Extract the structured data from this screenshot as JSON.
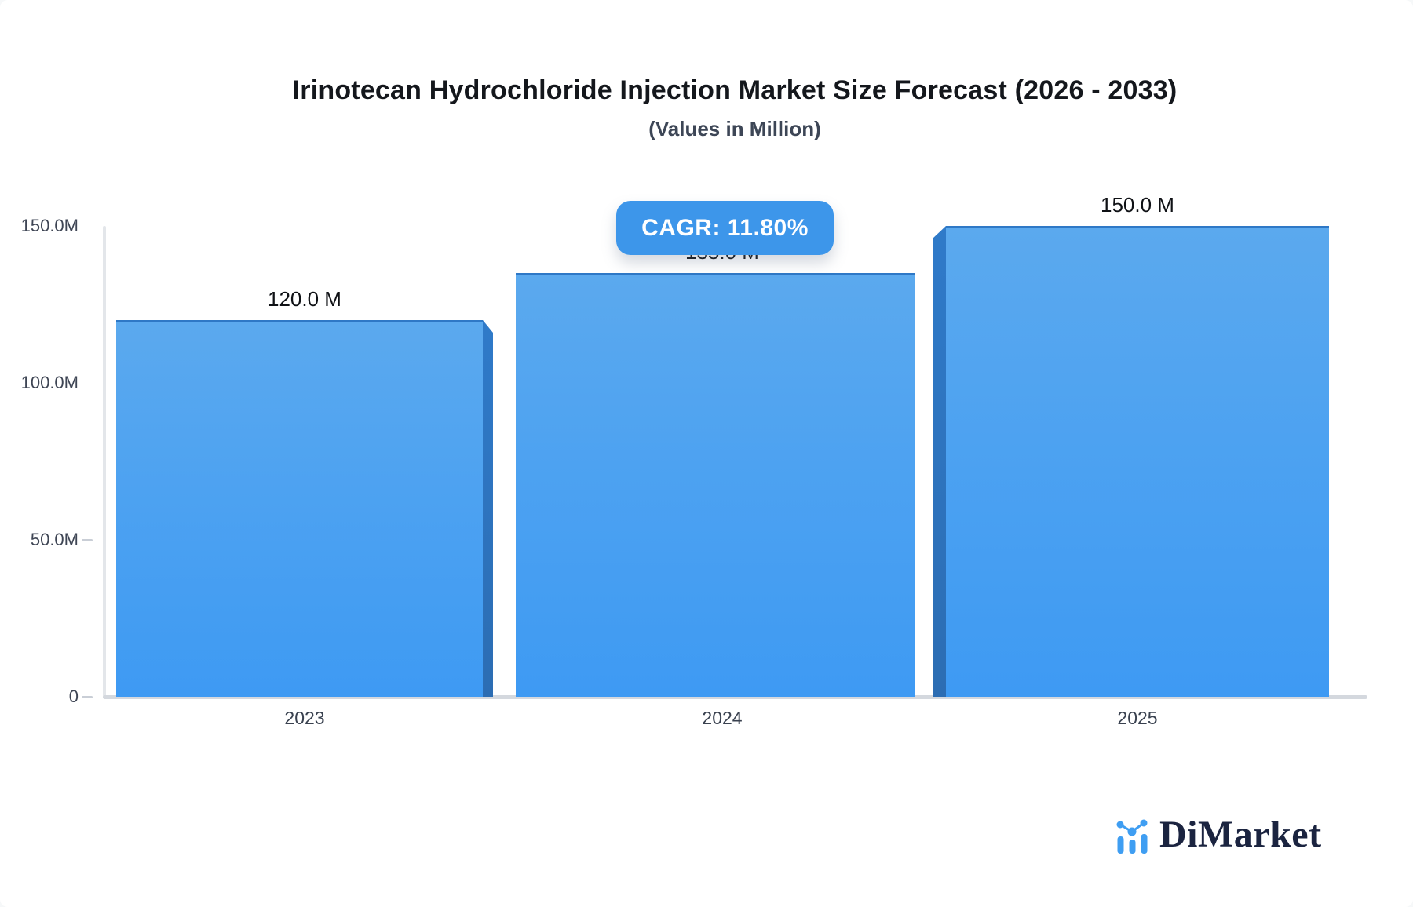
{
  "title": "Irinotecan Hydrochloride Injection Market Size Forecast (2026 - 2033)",
  "subtitle": "(Values in Million)",
  "cagr_label": "CAGR: 11.80%",
  "chart_data": {
    "type": "bar",
    "categories": [
      "2023",
      "2024",
      "2025"
    ],
    "values": [
      120,
      135,
      150
    ],
    "value_labels": [
      "120.0 M",
      "135.0 M",
      "150.0 M"
    ],
    "title": "Irinotecan Hydrochloride Injection Market Size Forecast (2026 - 2033)",
    "subtitle": "(Values in Million)",
    "xlabel": "",
    "ylabel": "",
    "ylim": [
      0,
      150
    ],
    "yticks": [
      {
        "label": "150.0M",
        "value": 150,
        "tick": false
      },
      {
        "label": "100.0M",
        "value": 100,
        "tick": false
      },
      {
        "label": "50.0M",
        "value": 50,
        "tick": true
      },
      {
        "label": "0",
        "value": 0,
        "tick": true
      }
    ],
    "grid": false,
    "legend": false,
    "annotation": "CAGR: 11.80%",
    "bar_color_top": "#5ba9ee",
    "bar_color_bottom": "#3e9af3",
    "bar_side_color": "#2d72ba",
    "bar_edge_color": "#2e78c6"
  },
  "brand": {
    "name": "DiMarket",
    "icon": "bar-chart-logo-icon",
    "text_color": "#1b2440",
    "icon_color": "#3f9ef2"
  },
  "colors": {
    "badge_bg": "#3d96ea",
    "badge_text": "#ffffff",
    "axis_line": "#e3e6ea",
    "baseline": "#d4d8de"
  }
}
